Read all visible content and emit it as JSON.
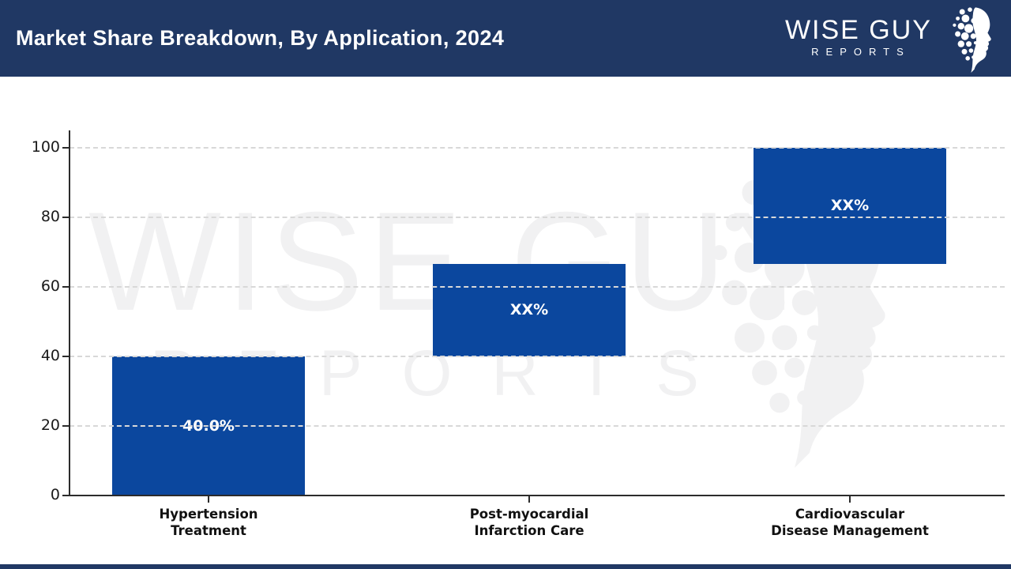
{
  "header": {
    "title": "Market Share Breakdown, By Application, 2024",
    "logo": {
      "brand_line1": "WISE GUY",
      "brand_line2": "REPORTS"
    },
    "background": "#203864",
    "text_color": "#ffffff"
  },
  "watermark": {
    "line1": "WISE GUY",
    "line2": "REPORTS"
  },
  "footer": {
    "background": "#203864"
  },
  "chart_data": {
    "type": "bar",
    "subtype": "waterfall-share",
    "title": "Market Share Breakdown, By Application, 2024",
    "categories": [
      [
        "Hypertension",
        "Treatment"
      ],
      [
        "Post-myocardial",
        "Infarction Care"
      ],
      [
        "Cardiovascular",
        "Disease Management"
      ]
    ],
    "series": [
      {
        "name": "Hypertension Treatment",
        "start": 0,
        "end": 40,
        "label": "40.0%"
      },
      {
        "name": "Post-myocardial Infarction Care",
        "start": 40,
        "end": 66.7,
        "label": "XX%"
      },
      {
        "name": "Cardiovascular Disease Management",
        "start": 66.7,
        "end": 100,
        "label": "XX%"
      }
    ],
    "yticks": [
      0,
      20,
      40,
      60,
      80,
      100
    ],
    "ylim": [
      0,
      104.5
    ],
    "xlabel": "",
    "ylabel": "",
    "grid": "horizontal-dashed",
    "legend": "none",
    "bar_color": "#0b479e",
    "bar_label_color": "#ffffff",
    "axis_color": "#2b2b2b",
    "grid_color": "#d8d8d8",
    "tick_label_color": "#1a1a1a"
  }
}
